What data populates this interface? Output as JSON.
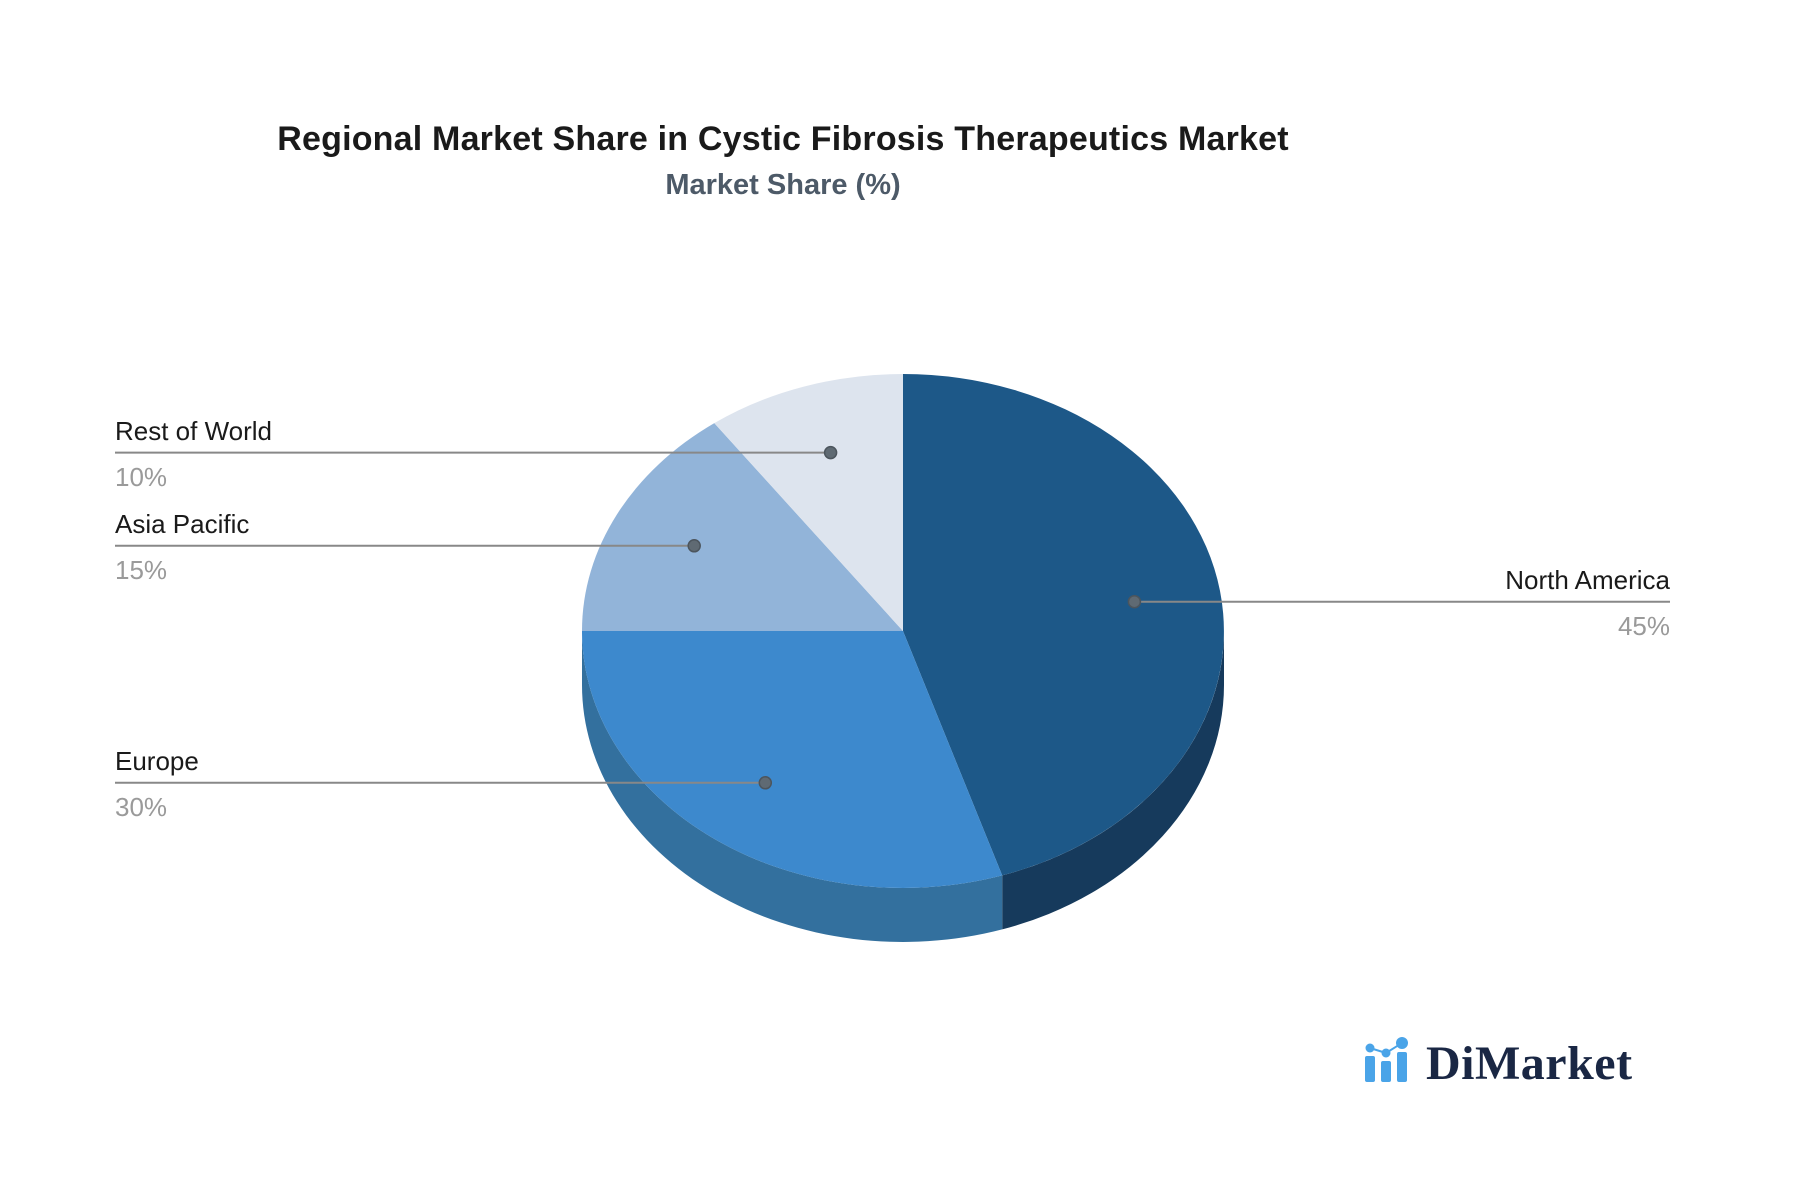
{
  "chart_data": {
    "type": "pie",
    "title": "Regional Market Share in Cystic Fibrosis Therapeutics Market",
    "subtitle": "Market Share (%)",
    "unit": "%",
    "start_angle": "12-o-clock",
    "direction": "clockwise",
    "style": "3d-pie, leader-line labels, no legend, white background",
    "slices": [
      {
        "label": "North America",
        "value": 45,
        "display": "45%",
        "color": "#1d5888",
        "side_color": "#163a5c",
        "label_side": "right"
      },
      {
        "label": "Europe",
        "value": 30,
        "display": "30%",
        "color": "#3d89cd",
        "side_color": "#33709e",
        "label_side": "left"
      },
      {
        "label": "Asia Pacific",
        "value": 15,
        "display": "15%",
        "color": "#92b4d9",
        "side_color": "#7d9fc4",
        "label_side": "left"
      },
      {
        "label": "Rest of World",
        "value": 10,
        "display": "10%",
        "color": "#dde4ee",
        "side_color": "#bcc7d6",
        "label_side": "left"
      }
    ],
    "label_text_color": "#1a1a1a",
    "value_text_color": "#9a9a9a",
    "leader_line_color": "#888888",
    "leader_dot_color": "#5f6a73"
  },
  "branding": {
    "name": "DiMarket",
    "icon": "bar-line-chart-icon",
    "icon_color": "#4aa4e8",
    "text_color": "#1a2744"
  }
}
